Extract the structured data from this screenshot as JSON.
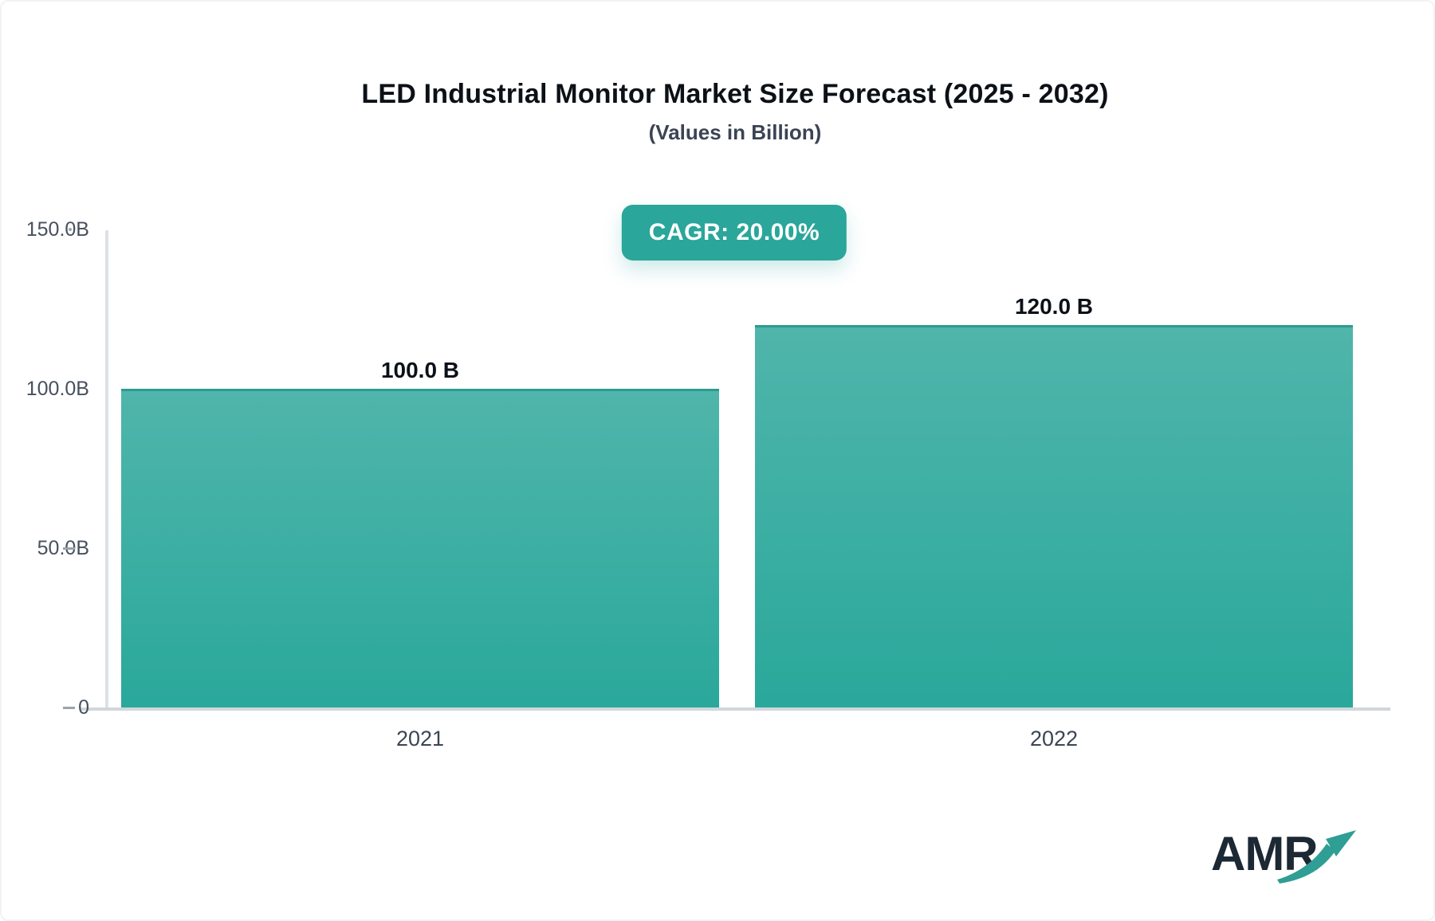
{
  "header": {
    "title": "LED Industrial Monitor Market Size Forecast (2025 - 2032)",
    "subtitle": "(Values in Billion)",
    "cagr_badge": "CAGR: 20.00%"
  },
  "chart_data": {
    "type": "bar",
    "title": "LED Industrial Monitor Market Size Forecast (2025 - 2032)",
    "subtitle": "(Values in Billion)",
    "unit": "Billion",
    "categories": [
      "2021",
      "2022"
    ],
    "values": [
      100.0,
      120.0
    ],
    "value_labels": [
      "100.0 B",
      "120.0 B"
    ],
    "cagr": "20.00%",
    "ylim": [
      0,
      150
    ],
    "yticks": [
      {
        "label": "150.0B",
        "value": 150,
        "marker": "dot"
      },
      {
        "label": "100.0B",
        "value": 100,
        "marker": "none"
      },
      {
        "label": "50.0B",
        "value": 50,
        "marker": "dash"
      },
      {
        "label": "0",
        "value": 0,
        "marker": "dash"
      }
    ],
    "grid": false,
    "legend": "none",
    "colors": {
      "bar_top": "#50b5ab",
      "bar_bottom": "#2aa89b",
      "bar_border": "#2c9b90",
      "badge": "#2aa69a",
      "logo_arrow": "#2f9e95",
      "logo_text": "#1c2834"
    }
  },
  "logo": {
    "text": "AMR"
  }
}
